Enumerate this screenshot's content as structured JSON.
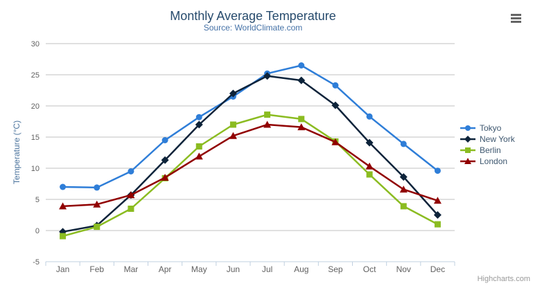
{
  "credits": "Highcharts.com",
  "icons": {
    "export_menu": "hamburger-menu-icon"
  },
  "colors": {
    "title": "#274b6d",
    "subtitle": "#4572a7",
    "axis_labels": "#606060",
    "axis_title": "#4d759e",
    "gridline": "#c0c0c0",
    "axis_line": "#c0d0e0",
    "legend_text": "#3e576f",
    "credits": "#999999",
    "menu_icon": "#666666"
  },
  "chart_data": {
    "type": "line",
    "title": "Monthly Average Temperature",
    "subtitle": "Source: WorldClimate.com",
    "xlabel": "",
    "ylabel": "Temperature (°C)",
    "categories": [
      "Jan",
      "Feb",
      "Mar",
      "Apr",
      "May",
      "Jun",
      "Jul",
      "Aug",
      "Sep",
      "Oct",
      "Nov",
      "Dec"
    ],
    "ylim": [
      -5,
      30
    ],
    "ytick_step": 5,
    "grid": true,
    "legend_position": "right",
    "series": [
      {
        "name": "Tokyo",
        "color": "#2f7ed8",
        "marker": "circle",
        "values": [
          7.0,
          6.9,
          9.5,
          14.5,
          18.2,
          21.5,
          25.2,
          26.5,
          23.3,
          18.3,
          13.9,
          9.6
        ]
      },
      {
        "name": "New York",
        "color": "#0d233a",
        "marker": "diamond",
        "values": [
          -0.2,
          0.8,
          5.7,
          11.3,
          17.0,
          22.0,
          24.8,
          24.1,
          20.1,
          14.1,
          8.6,
          2.5
        ]
      },
      {
        "name": "Berlin",
        "color": "#8bbc21",
        "marker": "square",
        "values": [
          -0.9,
          0.6,
          3.5,
          8.4,
          13.5,
          17.0,
          18.6,
          17.9,
          14.3,
          9.0,
          3.9,
          1.0
        ]
      },
      {
        "name": "London",
        "color": "#910000",
        "marker": "triangle",
        "values": [
          3.9,
          4.2,
          5.7,
          8.5,
          11.9,
          15.2,
          17.0,
          16.6,
          14.2,
          10.3,
          6.6,
          4.8
        ]
      }
    ]
  }
}
